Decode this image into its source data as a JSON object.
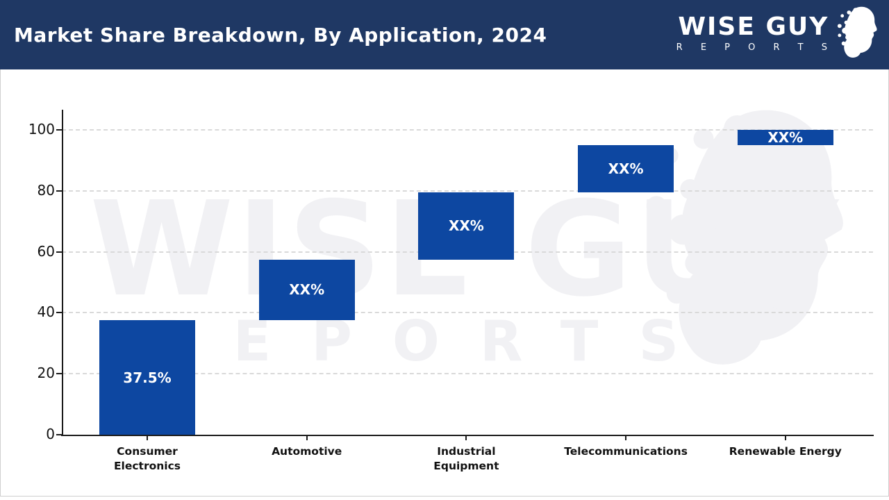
{
  "header": {
    "title": "Market Share Breakdown, By Application, 2024",
    "bg_color": "#1f3864",
    "brand": {
      "line1": "WISE GUY",
      "line2": "R E P O R T S"
    }
  },
  "watermark": {
    "line1": "WISE GUY",
    "line2": "REPORTS"
  },
  "chart_data": {
    "type": "bar",
    "subtype": "floating-waterfall",
    "title": "Market Share Breakdown, By Application, 2024",
    "categories": [
      "Consumer Electronics",
      "Automotive",
      "Industrial Equipment",
      "Telecommunications",
      "Renewable Energy"
    ],
    "category_lines": [
      [
        "Consumer",
        "Electronics"
      ],
      [
        "Automotive"
      ],
      [
        "Industrial",
        "Equipment"
      ],
      [
        "Telecommunications"
      ],
      [
        "Renewable Energy"
      ]
    ],
    "series": [
      {
        "name": "Market Share (%)",
        "segments": [
          {
            "category": "Consumer Electronics",
            "start": 0,
            "end": 37.5
          },
          {
            "category": "Automotive",
            "start": 37.5,
            "end": 57.5
          },
          {
            "category": "Industrial Equipment",
            "start": 57.5,
            "end": 79.5
          },
          {
            "category": "Telecommunications",
            "start": 79.5,
            "end": 95
          },
          {
            "category": "Renewable Energy",
            "start": 95,
            "end": 100
          }
        ]
      }
    ],
    "bar_labels": [
      "37.5%",
      "XX%",
      "XX%",
      "XX%",
      "XX%"
    ],
    "xlabel": "",
    "ylabel": "",
    "ylim": [
      0,
      100
    ],
    "yticks": [
      0,
      20,
      40,
      60,
      80,
      100
    ],
    "grid": "horizontal-dashed",
    "legend": "none",
    "bar_color": "#0d47a1",
    "bar_label_color": "#ffffff",
    "axis_color": "#1a1a1a",
    "grid_color": "#d9d9d9"
  }
}
